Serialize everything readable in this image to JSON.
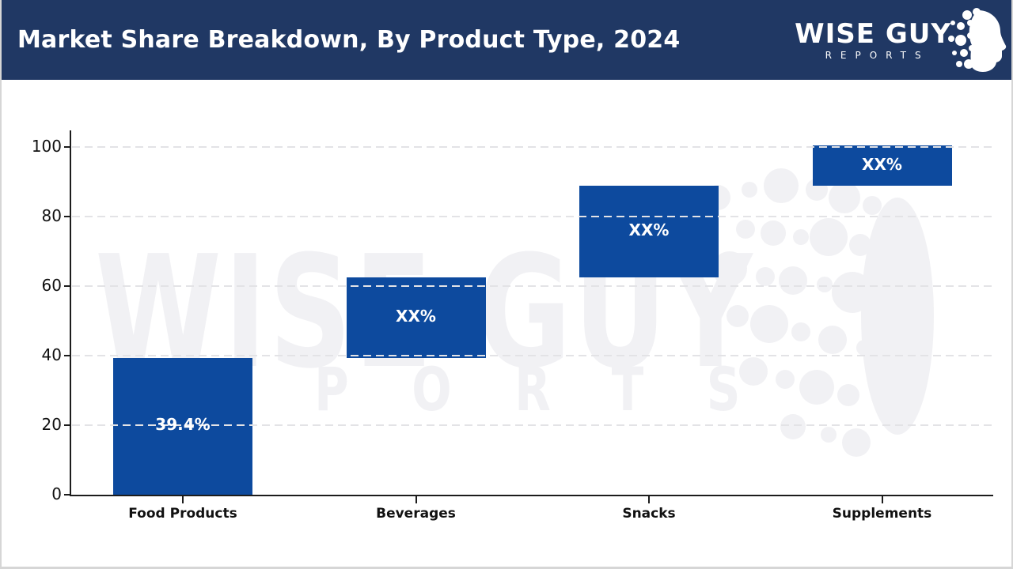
{
  "header": {
    "title": "Market Share Breakdown, By Product Type, 2024",
    "logo": {
      "line1": "WISE GUY",
      "line2": "REPORTS"
    }
  },
  "watermark": {
    "line1": "WISE GUY",
    "line2": "REPORTS"
  },
  "chart_data": {
    "type": "bar",
    "subtype": "waterfall",
    "title": "Market Share Breakdown, By Product Type, 2024",
    "categories": [
      "Food Products",
      "Beverages",
      "Snacks",
      "Supplements"
    ],
    "segments": [
      {
        "category": "Food Products",
        "start": 0,
        "end": 39.4,
        "label": "39.4%"
      },
      {
        "category": "Beverages",
        "start": 39.4,
        "end": 62.4,
        "label": "XX%"
      },
      {
        "category": "Snacks",
        "start": 62.4,
        "end": 88.8,
        "label": "XX%"
      },
      {
        "category": "Supplements",
        "start": 88.8,
        "end": 100.4,
        "label": "XX%"
      }
    ],
    "yticks": [
      0,
      20,
      40,
      60,
      80,
      100
    ],
    "ylim": [
      0,
      104.8
    ],
    "xlabel": "",
    "ylabel": "",
    "grid": true,
    "grid_style": "dashed",
    "bar_color": "#0d4a9e",
    "label_color": "#ffffff",
    "header_color": "#203864"
  }
}
